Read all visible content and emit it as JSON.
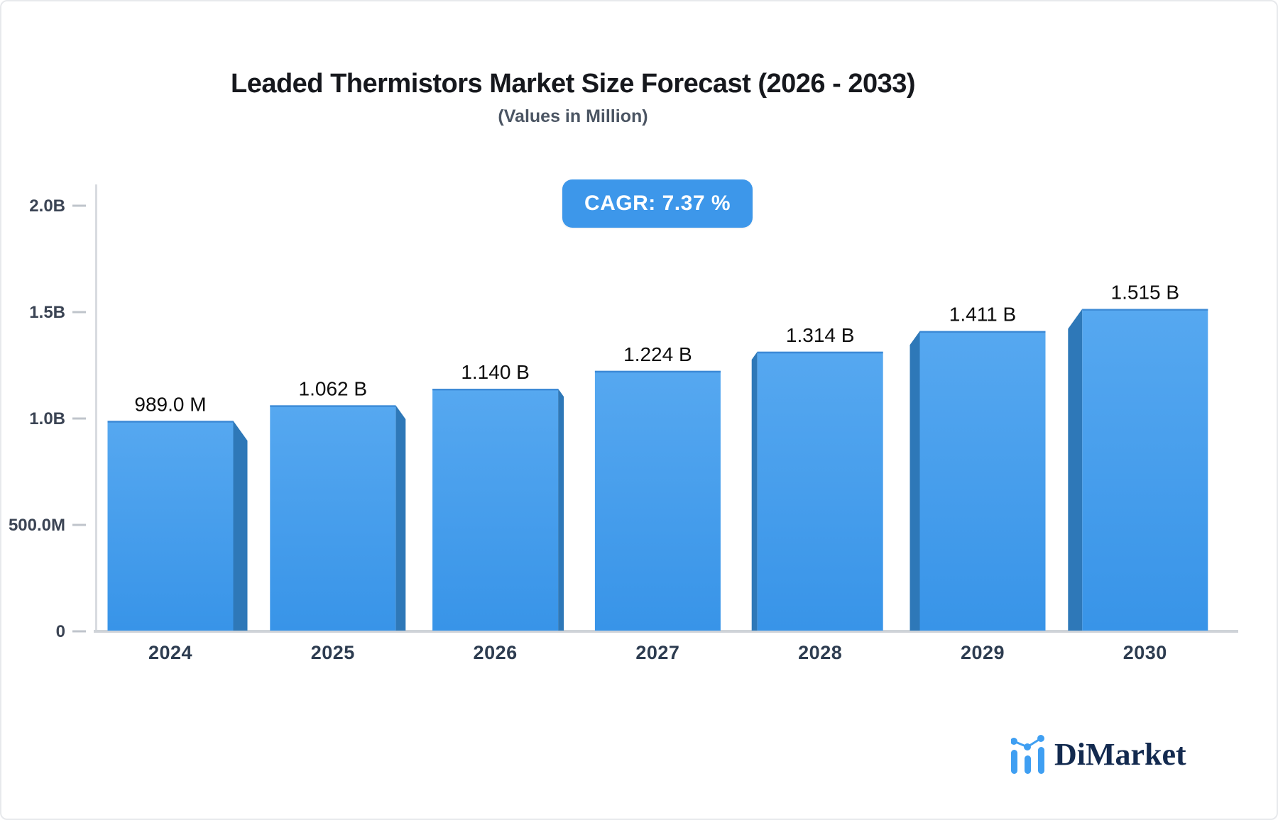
{
  "header": {
    "title": "Leaded Thermistors Market Size Forecast (2026 - 2033)",
    "subtitle": "(Values in Million)",
    "cagr_label": "CAGR: 7.37 %"
  },
  "chart_data": {
    "type": "bar",
    "title": "Leaded Thermistors Market Size Forecast (2026 - 2033)",
    "subtitle": "(Values in Million)",
    "xlabel": "",
    "ylabel": "",
    "categories": [
      "2024",
      "2025",
      "2026",
      "2027",
      "2028",
      "2029",
      "2030"
    ],
    "values_millions": [
      989,
      1062,
      1140,
      1224,
      1314,
      1411,
      1515
    ],
    "bar_labels": [
      "989.0 M",
      "1.062 B",
      "1.140 B",
      "1.224 B",
      "1.314 B",
      "1.411 B",
      "1.515 B"
    ],
    "cagr_percent": 7.37,
    "ylim_millions": [
      0,
      2000
    ],
    "yticks": [
      {
        "value": 0,
        "label": "0"
      },
      {
        "value": 500,
        "label": "500.0M"
      },
      {
        "value": 1000,
        "label": "1.0B"
      },
      {
        "value": 1500,
        "label": "1.5B"
      },
      {
        "value": 2000,
        "label": "2.0B"
      }
    ],
    "grid": false,
    "legend": "none",
    "style": "3d-column",
    "colors": {
      "bar_face_top": "#56a8f0",
      "bar_face_bottom": "#3894e8",
      "bar_top_edge": "#3d8ad6",
      "bar_side": "#2e78b8",
      "axis_line": "#d8dbe0",
      "baseline": "#cfd3d8",
      "tick_dash": "#bfc4cb",
      "tick_label": "#3b4454",
      "x_label": "#2d3c50",
      "value_label": "#0d0d0d",
      "badge": "#3d97ea"
    }
  },
  "footer": {
    "brand": "DiMarket"
  }
}
